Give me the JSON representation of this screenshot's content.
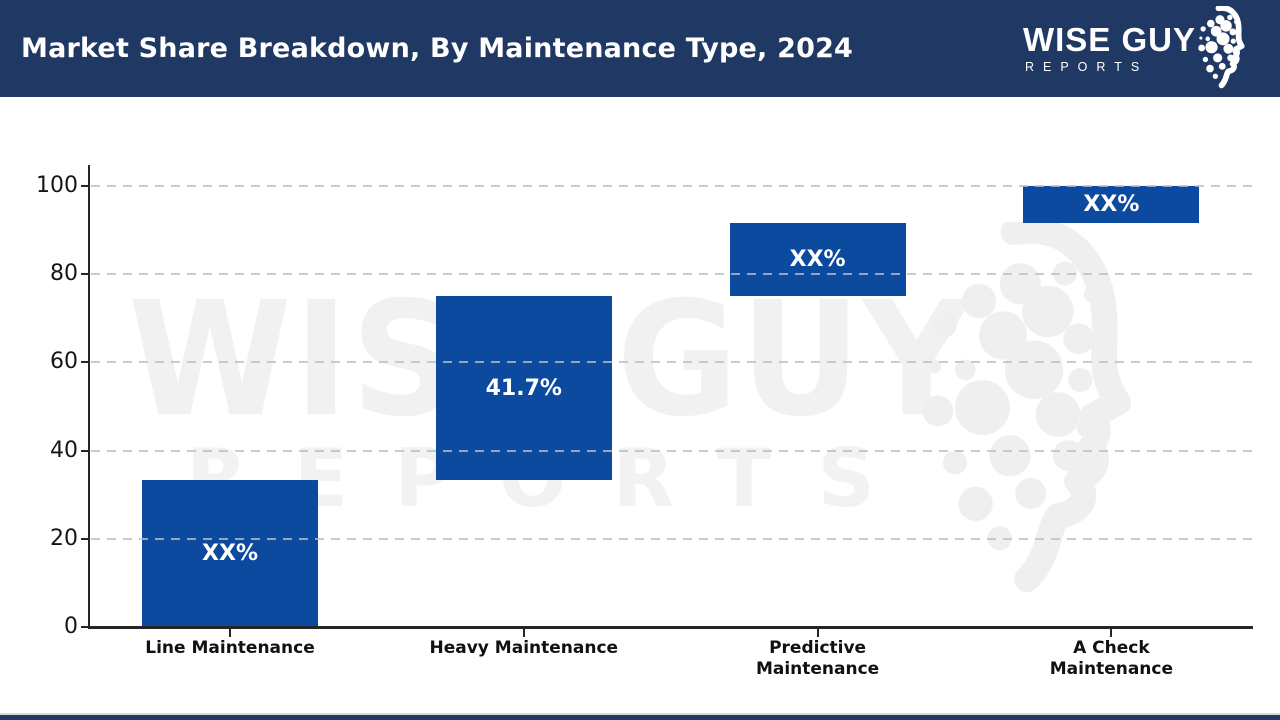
{
  "header": {
    "title": "Market Share Breakdown, By Maintenance Type, 2024",
    "logo": {
      "name": "WISE GUY",
      "subname": "REPORTS"
    }
  },
  "watermark": {
    "name": "WISE GUY",
    "subname": "REPORTS"
  },
  "colors": {
    "header_bg": "#203864",
    "footer_bg": "#203864",
    "bar": "#0b4a9e",
    "bar_label_text": "#ffffff",
    "axis_text": "#161616",
    "gridline": "#d4d4d8",
    "watermark": "#f1f1f1"
  },
  "chart_data": {
    "type": "bar",
    "subtype": "waterfall-floating-bars",
    "title": "Market Share Breakdown, By Maintenance Type, 2024",
    "categories": [
      "Line Maintenance",
      "Heavy Maintenance",
      "Predictive Maintenance",
      "A Check Maintenance"
    ],
    "category_label_lines": [
      [
        "Line Maintenance"
      ],
      [
        "Heavy Maintenance"
      ],
      [
        "Predictive",
        "Maintenance"
      ],
      [
        "A Check",
        "Maintenance"
      ]
    ],
    "bars": [
      {
        "category": "Line Maintenance",
        "start": 0,
        "end": 33.3,
        "value": 33.3,
        "label": "XX%"
      },
      {
        "category": "Heavy Maintenance",
        "start": 33.3,
        "end": 75,
        "value": 41.7,
        "label": "41.7%"
      },
      {
        "category": "Predictive Maintenance",
        "start": 75,
        "end": 91.7,
        "value": 16.7,
        "label": "XX%"
      },
      {
        "category": "A Check Maintenance",
        "start": 91.7,
        "end": 100,
        "value": 8.3,
        "label": "XX%"
      }
    ],
    "yticks": [
      0,
      20,
      40,
      60,
      80,
      100
    ],
    "ylim": [
      0,
      104.8
    ],
    "xlabel": "",
    "ylabel": "",
    "grid": "dashed-horizontal",
    "legend": "none"
  }
}
